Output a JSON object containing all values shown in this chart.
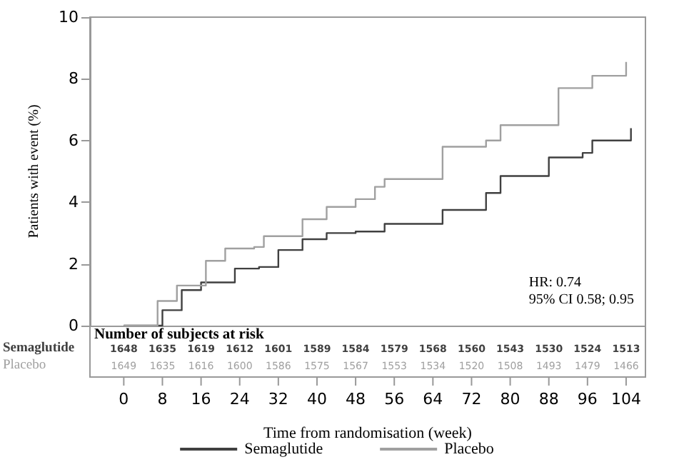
{
  "chart_data": {
    "type": "step",
    "xlabel": "Time from randomisation (week)",
    "ylabel": "Patients with event (%)",
    "xlim": [
      -7,
      108
    ],
    "ylim": [
      0,
      10
    ],
    "xticks": [
      0,
      8,
      16,
      24,
      32,
      40,
      48,
      56,
      64,
      72,
      80,
      88,
      96,
      104
    ],
    "yticks": [
      0,
      2,
      4,
      6,
      8,
      10
    ],
    "grid": false,
    "legend": "bottom",
    "marker": "none",
    "line_style": "solid",
    "series": [
      {
        "name": "Semaglutide",
        "color": "#404040",
        "x": [
          0,
          8,
          12,
          16,
          23,
          28,
          32,
          37,
          42,
          48,
          54,
          66,
          75,
          78,
          88,
          95,
          97,
          105
        ],
        "values": [
          0,
          0.5,
          1.15,
          1.4,
          1.85,
          1.9,
          2.45,
          2.8,
          3.0,
          3.05,
          3.3,
          3.75,
          4.3,
          4.85,
          5.45,
          5.6,
          6.0,
          6.4
        ]
      },
      {
        "name": "Placebo",
        "color": "#a0a0a0",
        "x": [
          0,
          7,
          11,
          17,
          21,
          27,
          29,
          37,
          42,
          48,
          52,
          54,
          66,
          75,
          78,
          90,
          97,
          104
        ],
        "values": [
          0,
          0.8,
          1.3,
          2.1,
          2.5,
          2.55,
          2.9,
          3.45,
          3.85,
          4.1,
          4.5,
          4.75,
          5.8,
          6.0,
          6.5,
          7.7,
          8.1,
          8.55
        ]
      }
    ],
    "annotations": [
      "HR: 0.74",
      "95% CI 0.58; 0.95",
      "Number of subjects at risk",
      "Semaglutide",
      "1648",
      "1635",
      "1619",
      "1612",
      "1601",
      "1589",
      "1584",
      "1579",
      "1568",
      "1560",
      "1543",
      "1530",
      "1524",
      "1513",
      "Placebo",
      "1649",
      "1635",
      "1616",
      "1600",
      "1586",
      "1575",
      "1567",
      "1553",
      "1534",
      "1520",
      "1508",
      "1493",
      "1479",
      "1466"
    ]
  }
}
